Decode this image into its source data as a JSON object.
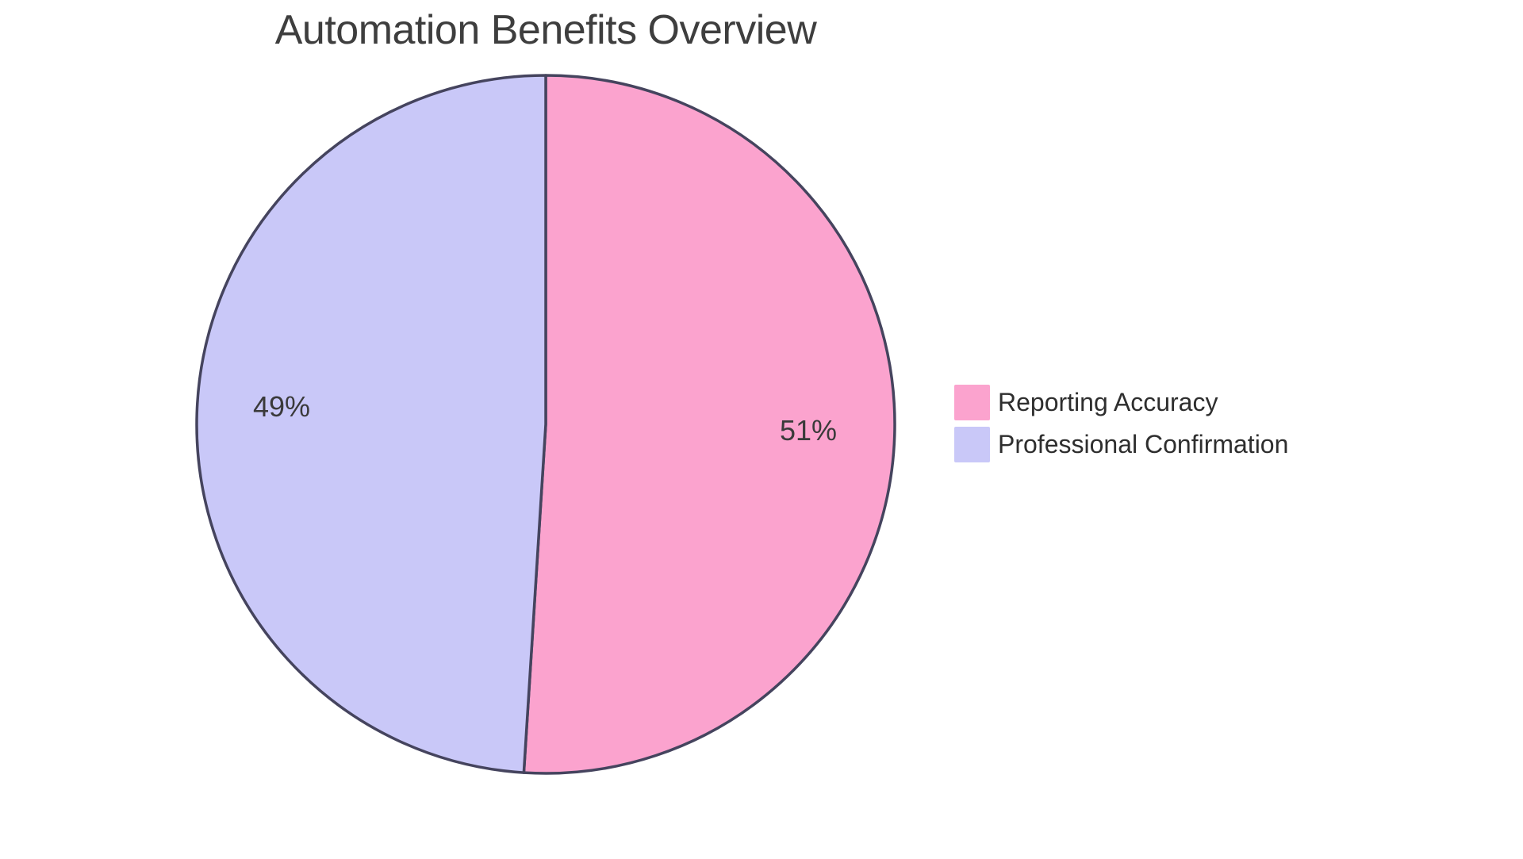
{
  "chart_data": {
    "type": "pie",
    "title": "Automation Benefits Overview",
    "legend_position": "right",
    "background_color": "#ffffff",
    "border_color": "#45445E",
    "title_color": "#3e3e3e",
    "start_angle_deg": 0,
    "direction": "clockwise",
    "slices": [
      {
        "label": "Reporting Accuracy",
        "value": 51,
        "pct_label": "51%",
        "color": "#FBA3CE"
      },
      {
        "label": "Professional Confirmation",
        "value": 49,
        "pct_label": "49%",
        "color": "#C9C8F8"
      }
    ]
  }
}
